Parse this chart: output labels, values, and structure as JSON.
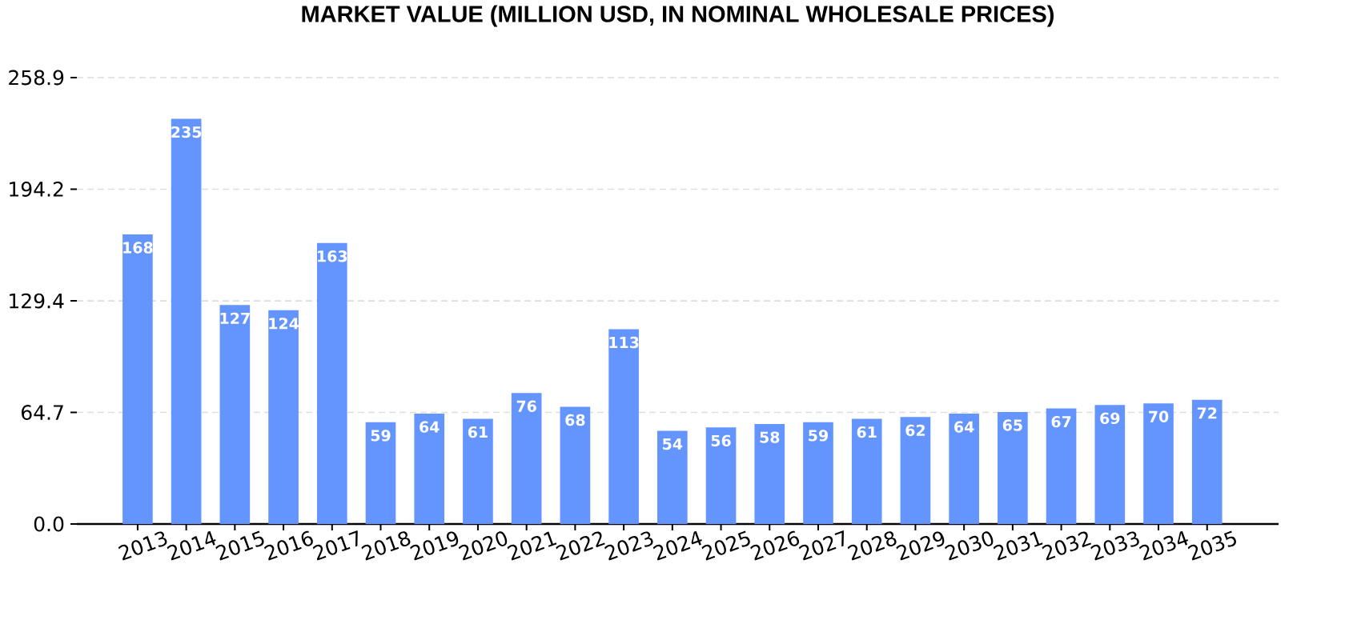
{
  "chart_data": {
    "type": "bar",
    "title": "MARKET VALUE (MILLION USD, IN NOMINAL WHOLESALE PRICES)",
    "categories": [
      "2013",
      "2014",
      "2015",
      "2016",
      "2017",
      "2018",
      "2019",
      "2020",
      "2021",
      "2022",
      "2023",
      "2024",
      "2025",
      "2026",
      "2027",
      "2028",
      "2029",
      "2030",
      "2031",
      "2032",
      "2033",
      "2034",
      "2035"
    ],
    "values": [
      168,
      235,
      127,
      124,
      163,
      59,
      64,
      61,
      76,
      68,
      113,
      54,
      56,
      58,
      59,
      61,
      62,
      64,
      65,
      67,
      69,
      70,
      72
    ],
    "color": "#6495ff",
    "ylim": [
      0,
      258.9
    ],
    "yticks": [
      {
        "value": 0,
        "label": "0.0"
      },
      64.7,
      129.4,
      194.2,
      258.9
    ],
    "grid": "y",
    "data_labels": true
  }
}
